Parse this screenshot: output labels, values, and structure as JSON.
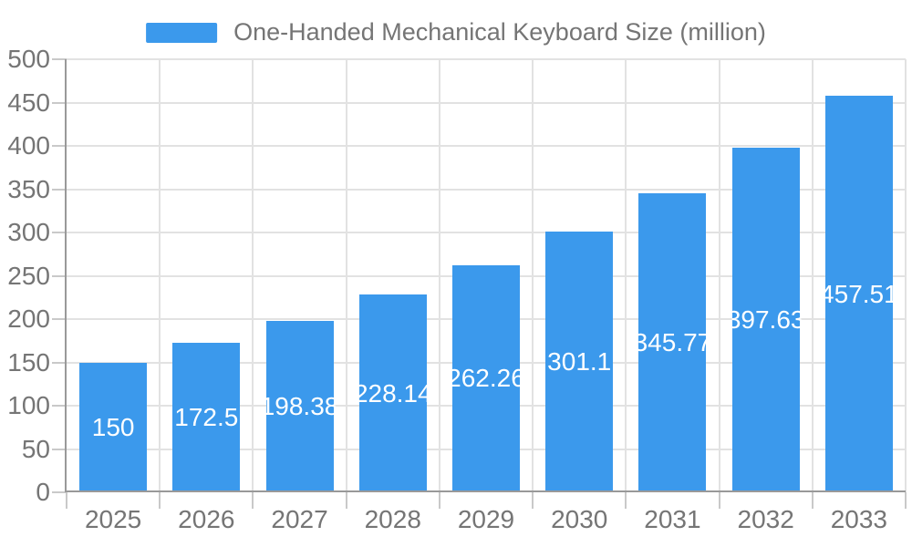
{
  "legend": {
    "label": "One-Handed Mechanical Keyboard Size (million)",
    "swatch_color": "#3B99EC"
  },
  "chart_data": {
    "type": "bar",
    "title": "One-Handed Mechanical Keyboard Size (million)",
    "categories": [
      "2025",
      "2026",
      "2027",
      "2028",
      "2029",
      "2030",
      "2031",
      "2032",
      "2033"
    ],
    "series": [
      {
        "name": "One-Handed Mechanical Keyboard Size (million)",
        "values": [
          150,
          172.5,
          198.38,
          228.14,
          262.26,
          301.1,
          345.77,
          397.63,
          457.51
        ]
      }
    ],
    "value_labels": [
      "150",
      "172.5",
      "198.38",
      "228.14",
      "262.26",
      "301.1",
      "345.77",
      "397.63",
      "457.51"
    ],
    "xlabel": "",
    "ylabel": "",
    "ylim": [
      0,
      500
    ],
    "ytick_step": 50,
    "yticks": [
      0,
      50,
      100,
      150,
      200,
      250,
      300,
      350,
      400,
      450,
      500
    ],
    "grid": true,
    "legend_position": "top-center",
    "colors": {
      "bar": "#3B99EC",
      "bar_value_label": "#FFFFFF",
      "axis_text": "#757575",
      "gridline": "#E2E2E2",
      "axis_line": "#999999",
      "tick": "#C9C9C9",
      "background": "#FFFFFF"
    }
  }
}
